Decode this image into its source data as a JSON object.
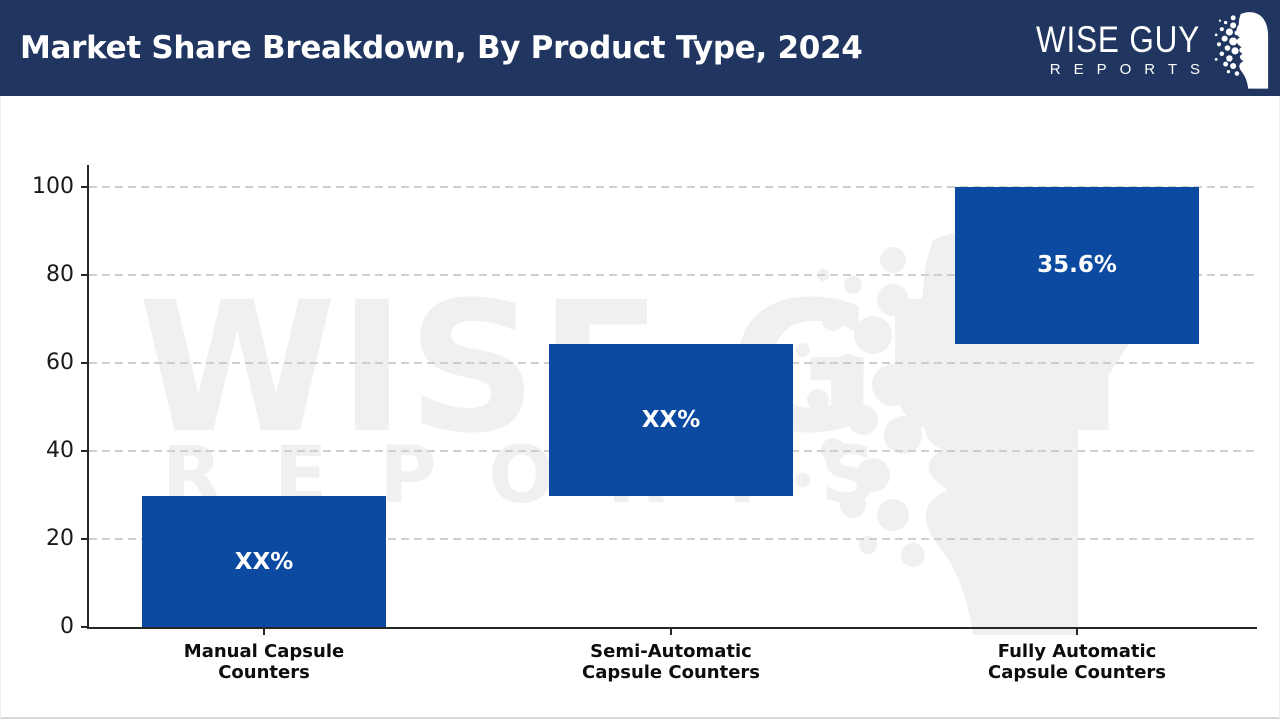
{
  "header": {
    "title": "Market Share Breakdown, By Product Type, 2024",
    "logo": {
      "brand": "WISE GUY",
      "sub": "REPORTS"
    }
  },
  "watermark": {
    "brand": "WISE GUY",
    "sub": "REPORTS"
  },
  "chart_data": {
    "type": "bar",
    "variant": "stacked-waterfall",
    "title": "Market Share Breakdown, By Product Type, 2024",
    "categories": [
      "Manual Capsule Counters",
      "Semi-Automatic Capsule Counters",
      "Fully Automatic Capsule Counters"
    ],
    "segments": [
      {
        "category_lines": "Manual Capsule\nCounters",
        "start": 0,
        "end": 29.7,
        "share_pct": 29.7,
        "label": "XX%"
      },
      {
        "category_lines": "Semi-Automatic\nCapsule Counters",
        "start": 29.7,
        "end": 64.4,
        "share_pct": 34.7,
        "label": "XX%"
      },
      {
        "category_lines": "Fully Automatic\nCapsule Counters",
        "start": 64.4,
        "end": 100,
        "share_pct": 35.6,
        "label": "35.6%"
      }
    ],
    "yticks": [
      0,
      20,
      40,
      60,
      80,
      100
    ],
    "ylim": [
      0,
      105
    ],
    "xlabel": "",
    "ylabel": "",
    "legend": "none",
    "grid": "horizontal-dashed",
    "bar_color": "#0b4aa0",
    "bar_label_color": "#ffffff",
    "axis_color": "#262626",
    "gridline_color": "#cfcfcf",
    "tick_label_color": "#1a1a1a"
  },
  "colors": {
    "header_bg": "#20355f",
    "page_bg": "#ffffff",
    "watermark": "#f0f0f2"
  }
}
